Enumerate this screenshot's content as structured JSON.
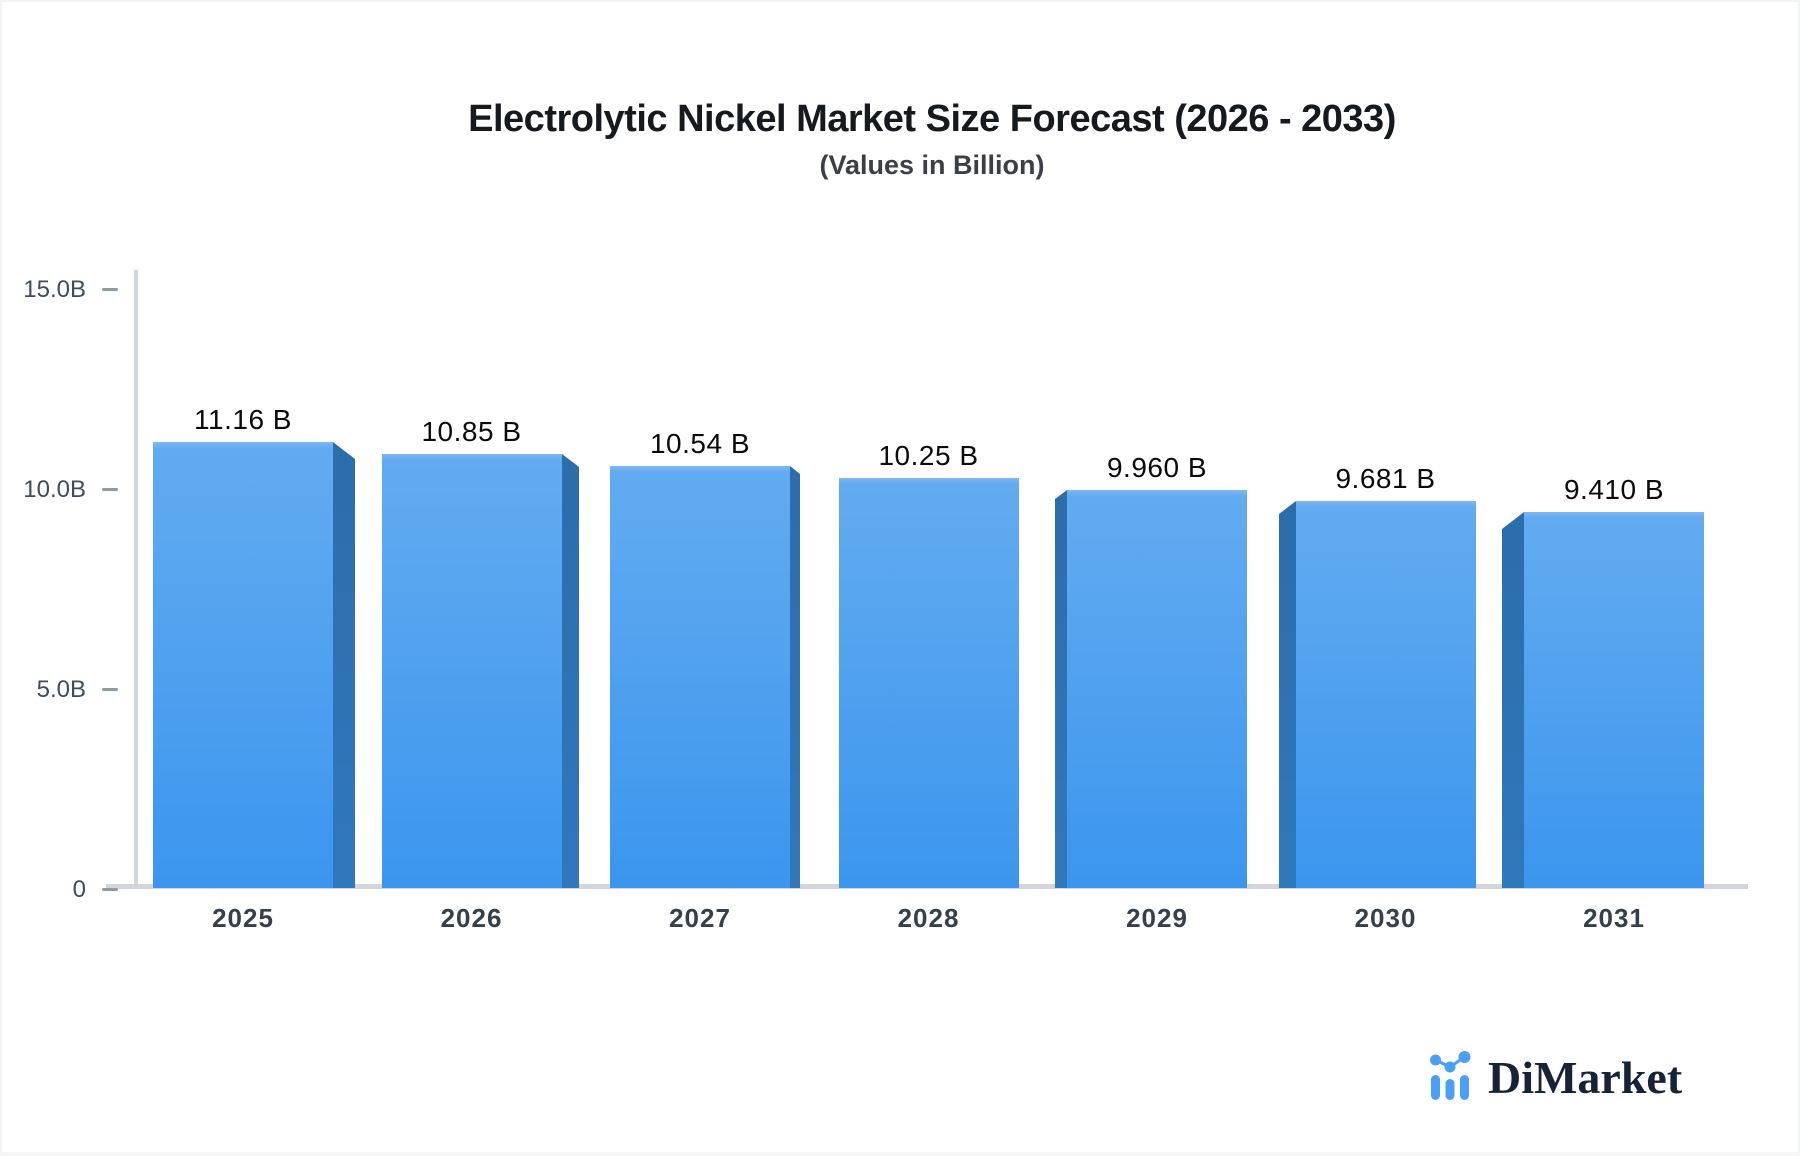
{
  "title": "Electrolytic Nickel Market Size Forecast (2026 - 2033)",
  "subtitle": "(Values in Billion)",
  "chart_data": {
    "type": "bar",
    "style": "3d-perspective-vanishing-center",
    "categories": [
      "2025",
      "2026",
      "2027",
      "2028",
      "2029",
      "2030",
      "2031"
    ],
    "values": [
      11.16,
      10.85,
      10.54,
      10.25,
      9.96,
      9.681,
      9.41
    ],
    "value_labels": [
      "11.16 B",
      "10.85 B",
      "10.54 B",
      "10.25 B",
      "9.960 B",
      "9.681 B",
      "9.410 B"
    ],
    "title": "Electrolytic Nickel Market Size Forecast (2026 - 2033)",
    "subtitle": "(Values in Billion)",
    "xlabel": "",
    "ylabel": "",
    "ylim": [
      0,
      15
    ],
    "y_ticks": [
      {
        "label": "15.0B",
        "value": 15
      },
      {
        "label": "10.0B",
        "value": 10
      },
      {
        "label": "5.0B",
        "value": 5
      },
      {
        "label": "0",
        "value": 0
      }
    ],
    "grid": false,
    "legend": false
  },
  "colors": {
    "bar_face_highlight": "#7db8f3",
    "bar_face_top": "#63abf0",
    "bar_face_bottom": "#3b96ee",
    "bar_side_top": "#2c6dab",
    "bar_side_bottom": "#3078bb",
    "axis_line": "#d3d7dc",
    "baseline": "#d2d6db",
    "tick_dash": "#8e99a6",
    "tick_text": "#3f4c5c",
    "x_label_text": "#36404d",
    "value_label_text": "#0b0b0b",
    "title_text": "#16191d",
    "subtitle_text": "#3c4046",
    "logo_blue": "#4aa0f6",
    "logo_navy": "#152238"
  },
  "logo": {
    "text": "DiMarket",
    "icon": "mini-bar-chart-icon"
  }
}
